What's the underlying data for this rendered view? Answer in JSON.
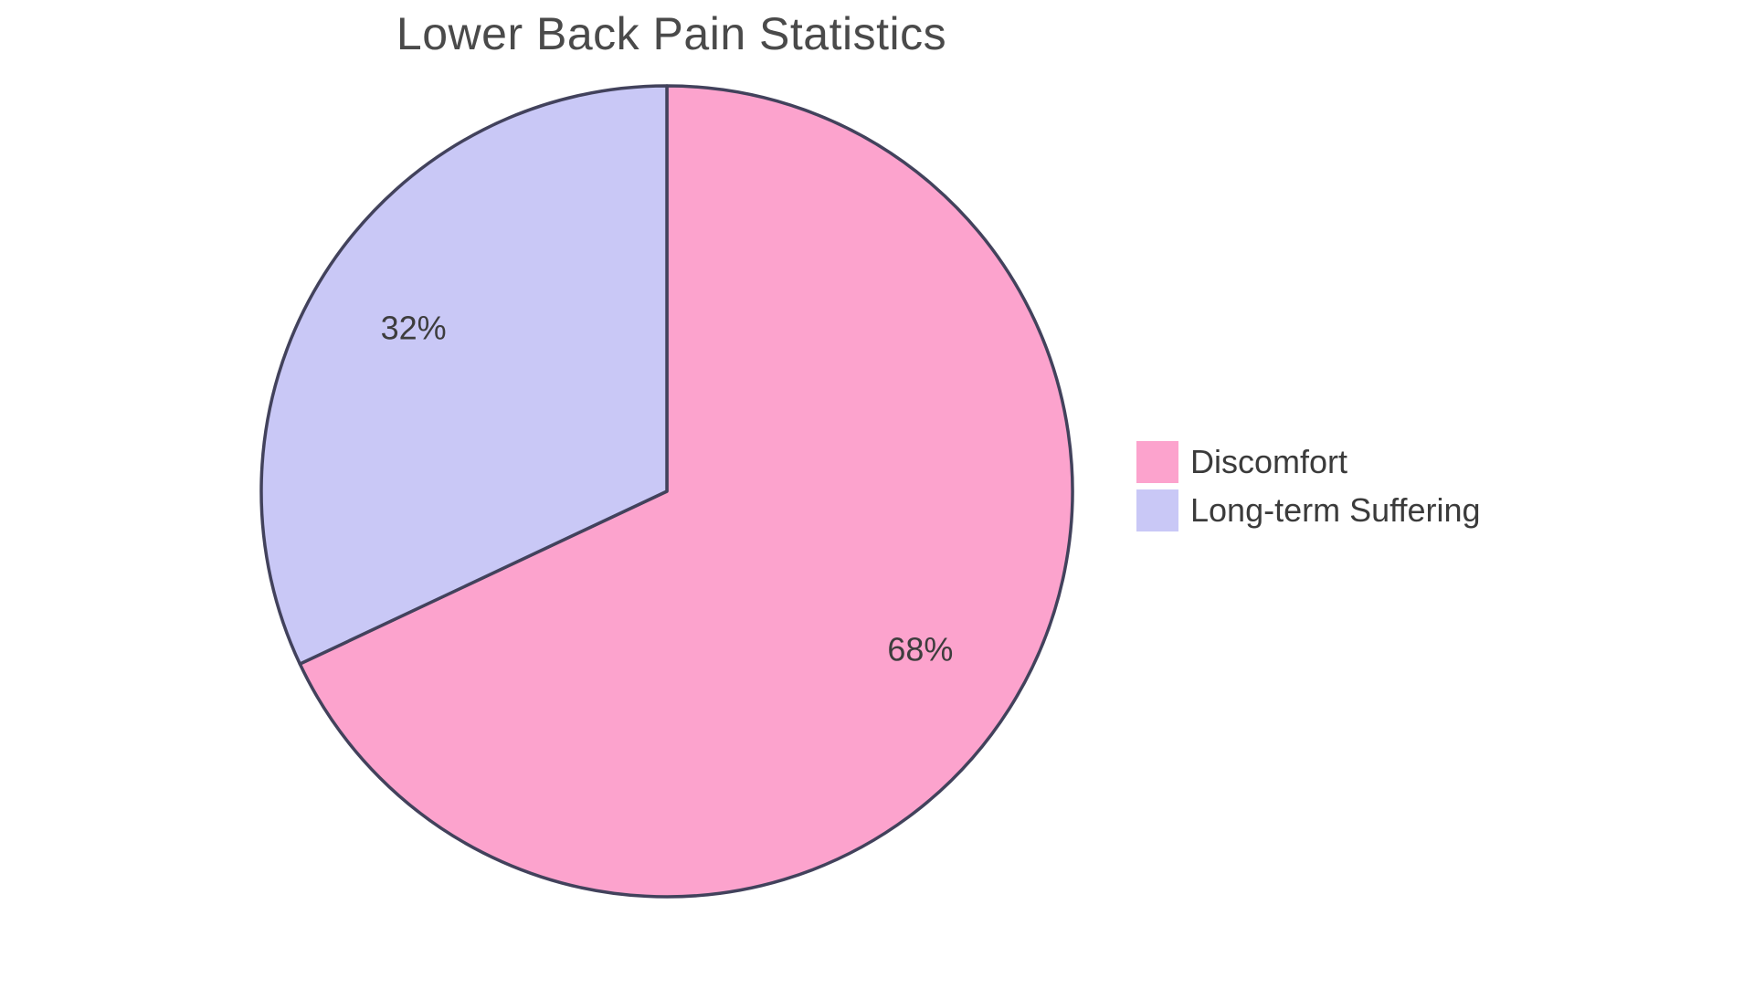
{
  "chart_data": {
    "type": "pie",
    "title": "Lower Back Pain Statistics",
    "labels": [
      "Discomfort",
      "Long-term Suffering"
    ],
    "values": [
      68,
      32
    ],
    "slice_labels": [
      "68%",
      "32%"
    ],
    "colors": [
      "#FCA3CD",
      "#C9C8F6"
    ],
    "border_color": "#42425C",
    "border_width": 3.5,
    "start_angle_deg": 0,
    "direction": "clockwise",
    "legend_position": "right",
    "label_radius_ratio": 0.74
  },
  "styles": {
    "background": "#FFFFFF",
    "title_color": "#4A4A4A",
    "slice_label_color": "#3D3D3D",
    "legend_text_color": "#3B3B3B"
  }
}
